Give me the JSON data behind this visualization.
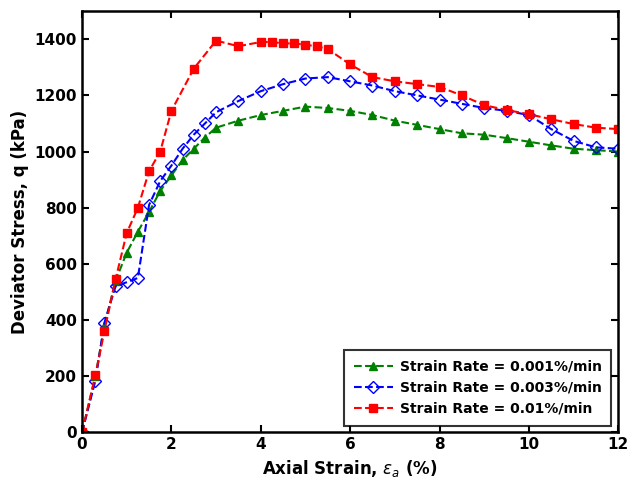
{
  "title": "",
  "xlabel": "Axial Strain, ε$_a$ (%)",
  "ylabel": "Deviator Stress, q (kPa)",
  "xlim": [
    0,
    12
  ],
  "ylim": [
    0,
    1500
  ],
  "xticks": [
    0,
    2,
    4,
    6,
    8,
    10,
    12
  ],
  "yticks": [
    0,
    200,
    400,
    600,
    800,
    1000,
    1200,
    1400
  ],
  "series": [
    {
      "label": "Strain Rate = 0.001%/min",
      "color": "#008000",
      "linestyle": "--",
      "marker": "^",
      "marker_facecolor": "#008000",
      "marker_edgecolor": "#008000",
      "markersize": 6,
      "linewidth": 1.5,
      "x": [
        0.0,
        0.3,
        0.5,
        0.75,
        1.0,
        1.25,
        1.5,
        1.75,
        2.0,
        2.25,
        2.5,
        2.75,
        3.0,
        3.5,
        4.0,
        4.5,
        5.0,
        5.5,
        6.0,
        6.5,
        7.0,
        7.5,
        8.0,
        8.5,
        9.0,
        9.5,
        10.0,
        10.5,
        11.0,
        11.5,
        12.0
      ],
      "y": [
        0,
        200,
        380,
        540,
        640,
        715,
        785,
        860,
        915,
        970,
        1010,
        1050,
        1085,
        1110,
        1130,
        1145,
        1160,
        1155,
        1145,
        1130,
        1110,
        1095,
        1080,
        1065,
        1060,
        1048,
        1035,
        1022,
        1010,
        1005,
        1000
      ]
    },
    {
      "label": "Strain Rate = 0.003%/min",
      "color": "#0000FF",
      "linestyle": "--",
      "marker": "D",
      "marker_facecolor": "none",
      "marker_edgecolor": "#0000FF",
      "markersize": 6,
      "linewidth": 1.5,
      "x": [
        0.0,
        0.3,
        0.5,
        0.75,
        1.0,
        1.25,
        1.5,
        1.75,
        2.0,
        2.25,
        2.5,
        2.75,
        3.0,
        3.5,
        4.0,
        4.5,
        5.0,
        5.5,
        6.0,
        6.5,
        7.0,
        7.5,
        8.0,
        8.5,
        9.0,
        9.5,
        10.0,
        10.5,
        11.0,
        11.5,
        12.0
      ],
      "y": [
        0,
        185,
        390,
        520,
        535,
        550,
        810,
        895,
        950,
        1010,
        1060,
        1100,
        1140,
        1180,
        1215,
        1240,
        1260,
        1265,
        1250,
        1235,
        1215,
        1200,
        1185,
        1170,
        1155,
        1145,
        1130,
        1080,
        1038,
        1015,
        1010
      ]
    },
    {
      "label": "Strain Rate = 0.01%/min",
      "color": "#FF0000",
      "linestyle": "--",
      "marker": "s",
      "marker_facecolor": "#FF0000",
      "marker_edgecolor": "#FF0000",
      "markersize": 6,
      "linewidth": 1.5,
      "x": [
        0.0,
        0.3,
        0.5,
        0.75,
        1.0,
        1.25,
        1.5,
        1.75,
        2.0,
        2.5,
        3.0,
        3.5,
        4.0,
        4.25,
        4.5,
        4.75,
        5.0,
        5.25,
        5.5,
        6.0,
        6.5,
        7.0,
        7.5,
        8.0,
        8.5,
        9.0,
        9.5,
        10.0,
        10.5,
        11.0,
        11.5,
        12.0
      ],
      "y": [
        0,
        205,
        360,
        545,
        710,
        800,
        930,
        1000,
        1145,
        1295,
        1395,
        1375,
        1390,
        1390,
        1385,
        1385,
        1380,
        1375,
        1365,
        1310,
        1265,
        1250,
        1240,
        1230,
        1200,
        1165,
        1148,
        1133,
        1115,
        1098,
        1085,
        1080
      ]
    }
  ],
  "legend_loc": "lower right",
  "background_color": "#ffffff",
  "axis_linewidth": 1.8,
  "tick_labelsize": 11,
  "xlabel_fontsize": 12,
  "ylabel_fontsize": 12,
  "legend_fontsize": 10
}
